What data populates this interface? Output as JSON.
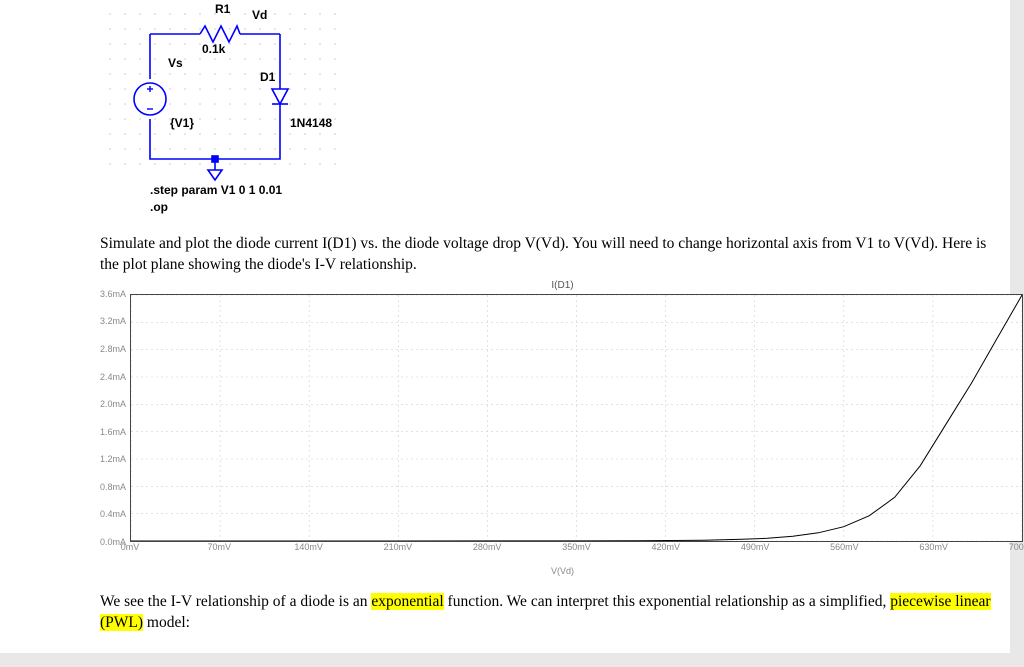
{
  "schematic": {
    "r1_label": "R1",
    "vd_label": "Vd",
    "r1_value": "0.1k",
    "vs_label": "Vs",
    "d1_label": "D1",
    "v1_param": "{V1}",
    "diode_model": "1N4148",
    "directive_step": ".step param V1 0 1 0.01",
    "directive_op": ".op",
    "wire_color": "#0000ff",
    "component_color": "#000000",
    "dot_color": "#c9c9c9"
  },
  "paragraph1_a": "Simulate and plot the diode current I(D1) vs. the diode voltage drop V(Vd). You will need to change horizontal axis from V1 to V(Vd). Here is the plot plane showing the diode's I-V relationship.",
  "chart": {
    "type": "line",
    "title": "I(D1)",
    "x_axis_title": "V(Vd)",
    "xlim": [
      0,
      700
    ],
    "ylim": [
      0,
      3.6
    ],
    "y_ticks": [
      0.0,
      0.4,
      0.8,
      1.2,
      1.6,
      2.0,
      2.4,
      2.8,
      3.2,
      3.6
    ],
    "y_tick_labels": [
      "0.0mA",
      "0.4mA",
      "0.8mA",
      "1.2mA",
      "1.6mA",
      "2.0mA",
      "2.4mA",
      "2.8mA",
      "3.2mA",
      "3.6mA"
    ],
    "x_ticks": [
      0,
      70,
      140,
      210,
      280,
      350,
      420,
      490,
      560,
      630,
      700
    ],
    "x_tick_labels": [
      "0mV",
      "70mV",
      "140mV",
      "210mV",
      "280mV",
      "350mV",
      "420mV",
      "490mV",
      "560mV",
      "630mV",
      "700mV"
    ],
    "grid_color": "#cfcfcf",
    "grid_dash": "2,3",
    "curve_color": "#000000",
    "curve_width": 1.0,
    "background_color": "#ffffff",
    "border_color": "#444444",
    "tick_font_size": 9,
    "tick_color": "#888888",
    "data_x": [
      0,
      100,
      200,
      300,
      350,
      400,
      450,
      480,
      500,
      520,
      540,
      560,
      580,
      600,
      620,
      640,
      660,
      680,
      700
    ],
    "data_y": [
      0,
      0.0,
      0.0,
      0.001,
      0.002,
      0.005,
      0.012,
      0.025,
      0.04,
      0.07,
      0.12,
      0.21,
      0.37,
      0.64,
      1.1,
      1.7,
      2.3,
      2.95,
      3.6
    ]
  },
  "paragraph2_parts": {
    "a": "We see the I-V relationship of a diode is an ",
    "hl1": "exponential",
    "b": " function.  We can interpret this exponential relationship as a simplified, ",
    "hl2": "piecewise linear (PWL)",
    "c": " model:"
  }
}
